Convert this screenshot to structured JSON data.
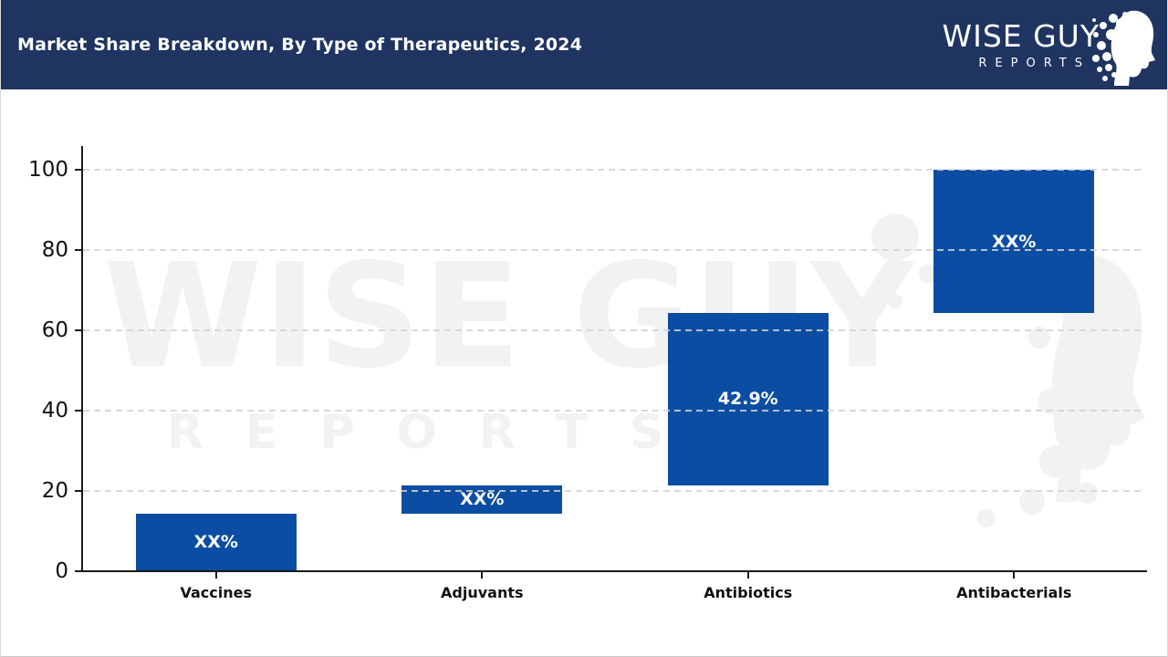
{
  "header": {
    "title": "Market Share Breakdown, By Type of Therapeutics, 2024",
    "bg_color": "#1f3461",
    "text_color": "#ffffff",
    "logo": {
      "line1": "WISE GUY",
      "line2": "REPORTS"
    }
  },
  "watermark": {
    "line1": "WISE GUY",
    "line2": "REPORTS"
  },
  "chart_data": {
    "type": "bar",
    "subtype": "waterfall",
    "title": "Market Share Breakdown, By Type of Therapeutics, 2024",
    "categories": [
      "Vaccines",
      "Adjuvants",
      "Antibiotics",
      "Antibacterials"
    ],
    "segments": [
      {
        "category": "Vaccines",
        "start": 0,
        "end": 14.4,
        "value": 14.4,
        "label": "XX%"
      },
      {
        "category": "Adjuvants",
        "start": 14.4,
        "end": 21.4,
        "value": 7.0,
        "label": "XX%"
      },
      {
        "category": "Antibiotics",
        "start": 21.4,
        "end": 64.3,
        "value": 42.9,
        "label": "42.9%"
      },
      {
        "category": "Antibacterials",
        "start": 64.3,
        "end": 100,
        "value": 35.7,
        "label": "XX%"
      }
    ],
    "xlabel": "",
    "ylabel": "",
    "ylim": [
      0,
      100
    ],
    "yticks": [
      0,
      20,
      40,
      60,
      80,
      100
    ],
    "grid": "horizontal-dashed",
    "grid_over_bars": true,
    "legend": "none",
    "bar_color": "#0b4da2",
    "bar_label_color": "#ffffff",
    "axis_color": "#1a1a1a",
    "grid_color": "#d2d2d2"
  }
}
